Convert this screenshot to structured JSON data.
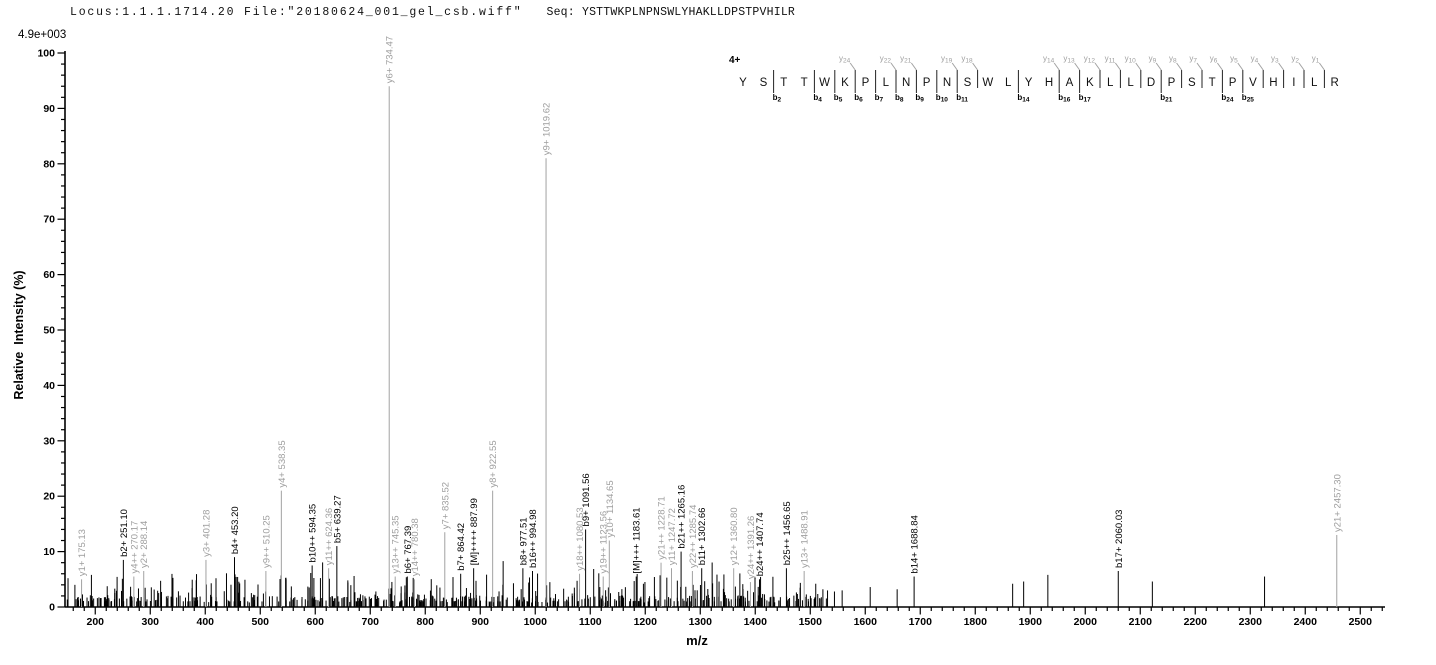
{
  "header": {
    "locus_file": "Locus:1.1.1.1714.20 File:\"20180624_001_gel_csb.wiff\"",
    "seq_label": "Seq:",
    "sequence": "YSTTWKPLNPNSWLYHAKLLDPSTPVHILR"
  },
  "plot": {
    "max_intensity_label": "4.9e+003",
    "y_axis_title": "Relative  Intensity (%)",
    "x_axis_title": "m/z"
  },
  "sequence_annotation": {
    "charge_label": "4+",
    "residues": "YSTTWKPLNPNSWLYHAKLLDPSTPVHILR",
    "y_ions": [
      24,
      22,
      21,
      19,
      18,
      14,
      13,
      12,
      11,
      10,
      9,
      8,
      7,
      6,
      5,
      4,
      3,
      2,
      1
    ],
    "b_ions": [
      2,
      4,
      5,
      6,
      7,
      8,
      9,
      10,
      11,
      14,
      16,
      17,
      21,
      24,
      25
    ]
  },
  "colors": {
    "y_ion": "#a2a2a2",
    "y_ion_label": "#9e9e9e",
    "b_ion": "#000000",
    "precursor": "#000000",
    "axis": "#000000"
  },
  "chart_data": {
    "type": "bar",
    "subtype": "centroid-mass-spectrum",
    "xlabel": "m/z",
    "ylabel": "Relative  Intensity (%)",
    "xlim": [
      145,
      2545
    ],
    "ylim": [
      0,
      100
    ],
    "x_ticks": [
      200,
      300,
      400,
      500,
      600,
      700,
      800,
      900,
      1000,
      1100,
      1200,
      1300,
      1400,
      1500,
      1600,
      1700,
      1800,
      1900,
      2000,
      2100,
      2200,
      2300,
      2400,
      2500
    ],
    "y_ticks": [
      0,
      10,
      20,
      30,
      40,
      50,
      60,
      70,
      80,
      90,
      100
    ],
    "x_minor_step": 20,
    "y_minor_step": 2,
    "grid": false,
    "max_intensity": "4.9e+003",
    "labeled_peaks": [
      {
        "label": "y1+ 175.13",
        "mz": 175.13,
        "intensity": 5,
        "series": "y"
      },
      {
        "label": "b2+ 251.10",
        "mz": 251.1,
        "intensity": 8.5,
        "series": "b"
      },
      {
        "label": "y4++ 270.17",
        "mz": 270.17,
        "intensity": 5.5,
        "series": "y"
      },
      {
        "label": "y2+ 288.14",
        "mz": 288.14,
        "intensity": 6.5,
        "series": "y"
      },
      {
        "label": "y3+ 401.28",
        "mz": 401.28,
        "intensity": 8.5,
        "series": "y"
      },
      {
        "label": "b4+ 453.20",
        "mz": 453.2,
        "intensity": 9,
        "series": "b"
      },
      {
        "label": "y9++ 510.25",
        "mz": 510.25,
        "intensity": 6.5,
        "series": "y"
      },
      {
        "label": "y4+ 538.35",
        "mz": 538.35,
        "intensity": 21,
        "series": "y"
      },
      {
        "label": "b10++ 594.35",
        "mz": 594.35,
        "intensity": 7.5,
        "series": "b"
      },
      {
        "label": "y11++ 624.36",
        "mz": 624.36,
        "intensity": 7,
        "series": "y"
      },
      {
        "label": "b5+ 639.27",
        "mz": 639.27,
        "intensity": 11,
        "series": "b"
      },
      {
        "label": "y6+ 734.47",
        "mz": 734.47,
        "intensity": 94,
        "series": "y"
      },
      {
        "label": "y13++ 745.35",
        "mz": 745.35,
        "intensity": 5.5,
        "series": "y"
      },
      {
        "label": "b6+ 767.39",
        "mz": 767.39,
        "intensity": 5.5,
        "series": "b"
      },
      {
        "label": "y14++ 780.38",
        "mz": 780.38,
        "intensity": 5,
        "series": "y"
      },
      {
        "label": "y7+ 835.52",
        "mz": 835.52,
        "intensity": 13.5,
        "series": "y"
      },
      {
        "label": "b7+ 864.42",
        "mz": 864.42,
        "intensity": 6,
        "series": "b"
      },
      {
        "label": "[M]++++ 887.99",
        "mz": 887.99,
        "intensity": 7,
        "series": "precursor"
      },
      {
        "label": "y8+ 922.55",
        "mz": 922.55,
        "intensity": 21,
        "series": "y"
      },
      {
        "label": "b8+ 977.51",
        "mz": 977.51,
        "intensity": 7,
        "series": "b"
      },
      {
        "label": "b16++ 994.98",
        "mz": 994.98,
        "intensity": 6.5,
        "series": "b"
      },
      {
        "label": "y9+ 1019.62",
        "mz": 1019.62,
        "intensity": 81,
        "series": "y"
      },
      {
        "label": "y18++ 1080.53",
        "mz": 1080.53,
        "intensity": 6,
        "series": "y"
      },
      {
        "label": "b9+ 1091.56",
        "mz": 1091.56,
        "intensity": 14,
        "series": "b"
      },
      {
        "label": "y19++ 1123.56",
        "mz": 1123.56,
        "intensity": 5.5,
        "series": "y"
      },
      {
        "label": "y10+ 1134.65",
        "mz": 1134.65,
        "intensity": 12,
        "series": "y"
      },
      {
        "label": "[M]+++ 1183.61",
        "mz": 1183.61,
        "intensity": 5.5,
        "series": "precursor"
      },
      {
        "label": "y21++ 1228.71",
        "mz": 1228.71,
        "intensity": 8,
        "series": "y"
      },
      {
        "label": "y11+ 1247.72",
        "mz": 1247.72,
        "intensity": 7,
        "series": "y"
      },
      {
        "label": "b21++ 1265.16",
        "mz": 1265.16,
        "intensity": 10,
        "series": "b"
      },
      {
        "label": "y22++ 1285.74",
        "mz": 1285.74,
        "intensity": 6.5,
        "series": "y"
      },
      {
        "label": "b11+ 1302.66",
        "mz": 1302.66,
        "intensity": 7,
        "series": "b"
      },
      {
        "label": "y12+ 1360.80",
        "mz": 1360.8,
        "intensity": 7,
        "series": "y"
      },
      {
        "label": "y24++ 1391.26",
        "mz": 1391.26,
        "intensity": 4.5,
        "series": "y"
      },
      {
        "label": "b24++ 1407.74",
        "mz": 1407.74,
        "intensity": 5,
        "series": "b"
      },
      {
        "label": "b25++ 1456.65",
        "mz": 1456.65,
        "intensity": 7,
        "series": "b"
      },
      {
        "label": "y13+ 1488.91",
        "mz": 1488.91,
        "intensity": 6.5,
        "series": "y"
      },
      {
        "label": "b14+ 1688.84",
        "mz": 1688.84,
        "intensity": 5.5,
        "series": "b"
      },
      {
        "label": "b17+ 2060.03",
        "mz": 2060.03,
        "intensity": 6.5,
        "series": "b"
      },
      {
        "label": "y21+ 2457.30",
        "mz": 2457.3,
        "intensity": 13,
        "series": "y"
      }
    ],
    "minor_unlabeled_peaks": [
      [
        150.5,
        5.2
      ],
      [
        163,
        4.0
      ],
      [
        1510,
        4.2
      ],
      [
        1523,
        3.2
      ],
      [
        1544,
        2.8
      ],
      [
        1558,
        3.0
      ],
      [
        1609,
        3.6
      ],
      [
        1658,
        3.2
      ],
      [
        1868,
        4.2
      ],
      [
        1888,
        4.6
      ],
      [
        1932,
        5.8
      ],
      [
        2122,
        4.6
      ],
      [
        2326,
        5.5
      ]
    ],
    "noise": {
      "seed": 20180624,
      "count": 340,
      "tiny_count": 240,
      "mz_min": 148,
      "mz_max": 1532
    }
  }
}
